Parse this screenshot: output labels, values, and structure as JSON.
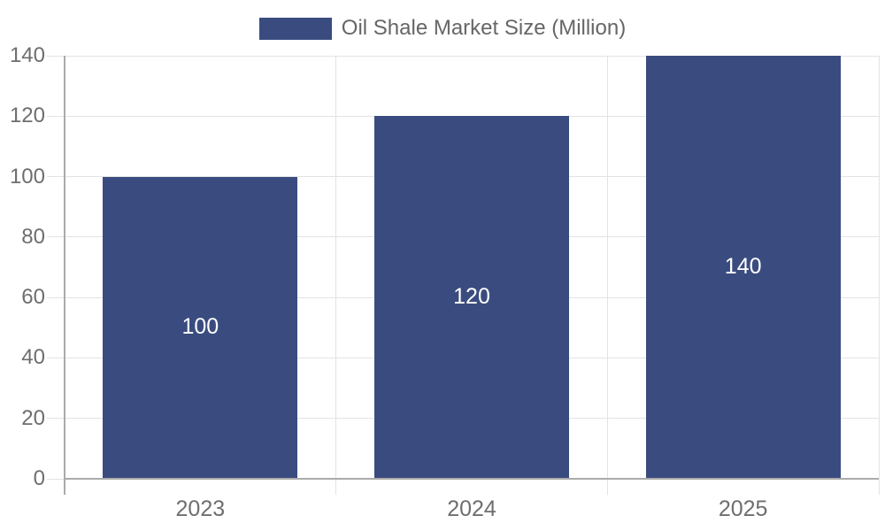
{
  "chart_data": {
    "type": "bar",
    "title": "Oil Shale Market Size (Million)",
    "categories": [
      "2023",
      "2024",
      "2025"
    ],
    "series": [
      {
        "name": "Oil Shale Market Size (Million)",
        "values": [
          100,
          120,
          140
        ]
      }
    ],
    "values": [
      100,
      120,
      140
    ],
    "data_labels": [
      "100",
      "120",
      "140"
    ],
    "xlabel": "",
    "ylabel": "",
    "ylim": [
      0,
      140
    ],
    "yticks": [
      "0",
      "20",
      "40",
      "60",
      "80",
      "100",
      "120",
      "140"
    ],
    "ytick_values": [
      0,
      20,
      40,
      60,
      80,
      100,
      120,
      140
    ],
    "grid": true,
    "legend": {
      "position": "top",
      "label": "Oil Shale Market Size (Million)"
    },
    "colors": {
      "bar": "#3A4C7F",
      "value_label": "#FFFFFF",
      "axis_text": "#6E6E6E",
      "legend_text": "#666666",
      "gridline": "#E3E3E3",
      "axis_line": "#ABABAB",
      "background": "#FFFFFF"
    }
  }
}
